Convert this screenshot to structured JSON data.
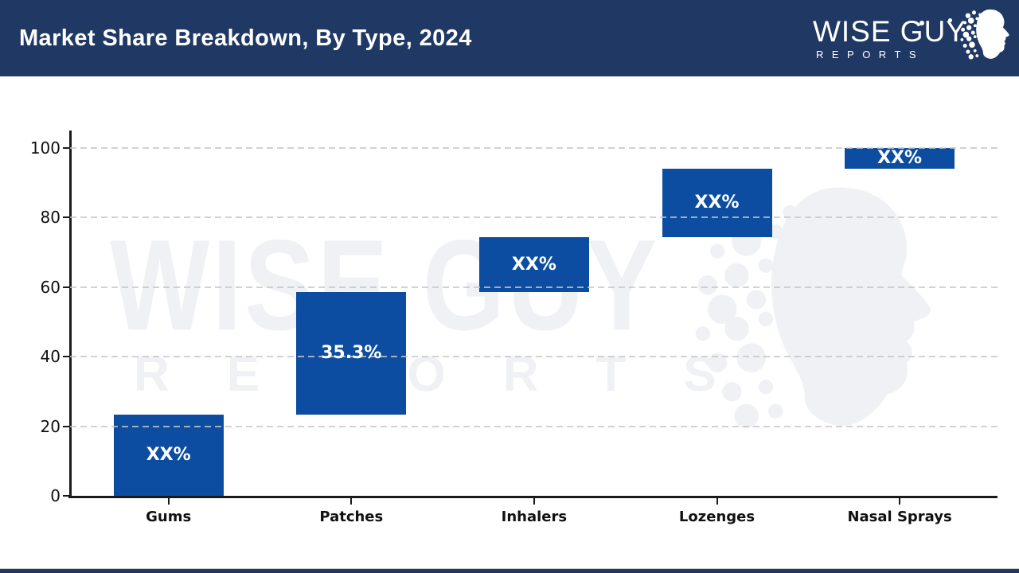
{
  "header": {
    "title": "Market Share Breakdown, By Type, 2024",
    "logo": {
      "line1": "WISE GUY",
      "line2": "REPORTS"
    }
  },
  "watermark": {
    "line1": "WISE GUY",
    "line2": "REPORTS"
  },
  "colors": {
    "header_bg": "#1F3864",
    "bar": "#0C4DA2",
    "bar_label": "#FFFFFF",
    "grid": "#C6C6C6",
    "axis": "#1A1A1A",
    "watermark": "#EFF1F4"
  },
  "chart_data": {
    "type": "bar",
    "subtype": "waterfall",
    "title": "Market Share Breakdown, By Type, 2024",
    "categories": [
      "Gums",
      "Patches",
      "Inhalers",
      "Lozenges",
      "Nasal Sprays"
    ],
    "segments": [
      {
        "category": "Gums",
        "start": 0,
        "end": 23.3,
        "label": "XX%"
      },
      {
        "category": "Patches",
        "start": 23.3,
        "end": 58.6,
        "label": "35.3%"
      },
      {
        "category": "Inhalers",
        "start": 58.6,
        "end": 74.3,
        "label": "XX%"
      },
      {
        "category": "Lozenges",
        "start": 74.3,
        "end": 94.1,
        "label": "XX%"
      },
      {
        "category": "Nasal Sprays",
        "start": 94.1,
        "end": 100,
        "label": "XX%"
      }
    ],
    "yticks": [
      0,
      20,
      40,
      60,
      80,
      100
    ],
    "ylim": [
      0,
      105
    ],
    "xlabel": "",
    "ylabel": "",
    "legend": "none",
    "grid": "horizontal dashed"
  }
}
